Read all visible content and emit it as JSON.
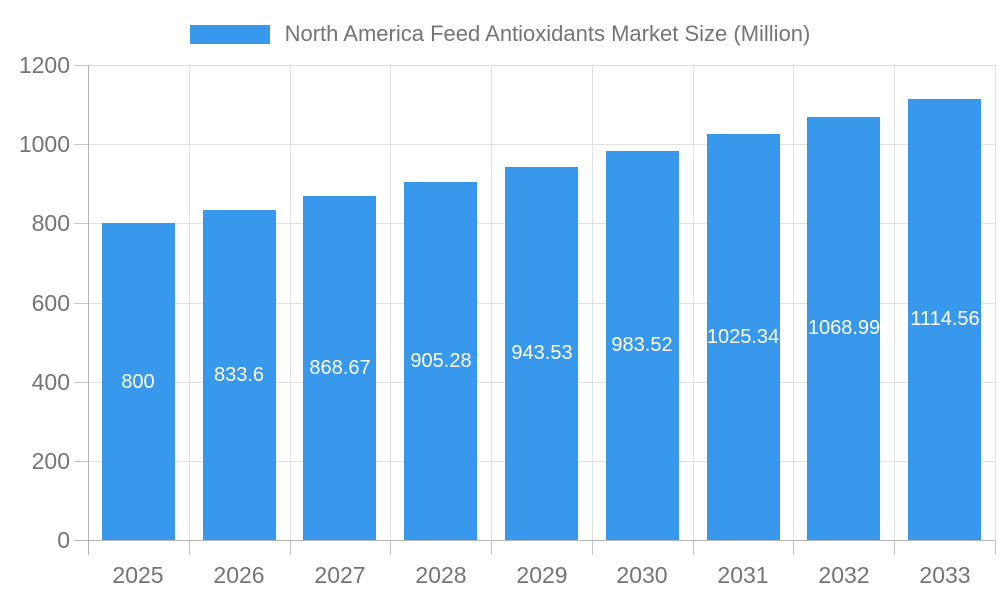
{
  "chart_data": {
    "type": "bar",
    "title": "North America Feed Antioxidants Market Size (Million)",
    "categories": [
      "2025",
      "2026",
      "2027",
      "2028",
      "2029",
      "2030",
      "2031",
      "2032",
      "2033"
    ],
    "values": [
      800,
      833.6,
      868.67,
      905.28,
      943.53,
      983.52,
      1025.34,
      1068.99,
      1114.56
    ],
    "value_labels": [
      "800",
      "833.6",
      "868.67",
      "905.28",
      "943.53",
      "983.52",
      "1025.34",
      "1068.99",
      "1114.56"
    ],
    "xlabel": "",
    "ylabel": "",
    "ylim": [
      0,
      1200
    ],
    "yticks": [
      0,
      200,
      400,
      600,
      800,
      1000,
      1200
    ],
    "grid": "both",
    "legend_position": "top-center",
    "colors": {
      "bar": "#3898EC",
      "bar_label_text": "#FFFFFF",
      "axis_text": "#757575",
      "legend_text": "#757575",
      "grid_line": "#E2E2E2",
      "axis_line": "#B6B6B6",
      "tick_line": "#C6C6C6",
      "background": "#FFFFFF"
    }
  }
}
